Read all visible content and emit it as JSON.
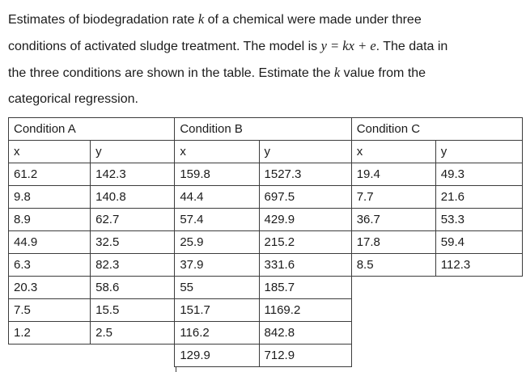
{
  "paragraph": {
    "line1": {
      "t1": "Estimates of biodegradation rate ",
      "m": "k",
      "t2": " of a chemical were made under three"
    },
    "line2": {
      "t1": "conditions of activated sludge treatment. The model is ",
      "m": "y = kx + e",
      "t2": ". The data in"
    },
    "line3": {
      "t1": "the three conditions are shown in the table. Estimate the ",
      "m": "k",
      "t2": " value from the"
    },
    "line4": {
      "t1": "categorical regression."
    }
  },
  "table": {
    "groups": [
      {
        "label": "Condition A",
        "col_headers": [
          "x",
          "y"
        ],
        "rows": [
          [
            "61.2",
            "142.3"
          ],
          [
            "9.8",
            "140.8"
          ],
          [
            "8.9",
            "62.7"
          ],
          [
            "44.9",
            "32.5"
          ],
          [
            "6.3",
            "82.3"
          ],
          [
            "20.3",
            "58.6"
          ],
          [
            "7.5",
            "15.5"
          ],
          [
            "1.2",
            "2.5"
          ]
        ]
      },
      {
        "label": "Condition B",
        "col_headers": [
          "x",
          "y"
        ],
        "rows": [
          [
            "159.8",
            "1527.3"
          ],
          [
            "44.4",
            "697.5"
          ],
          [
            "57.4",
            "429.9"
          ],
          [
            "25.9",
            "215.2"
          ],
          [
            "37.9",
            "331.6"
          ],
          [
            "55",
            "185.7"
          ],
          [
            "151.7",
            "1169.2"
          ],
          [
            "116.2",
            "842.8"
          ],
          [
            "129.9",
            "712.9"
          ]
        ]
      },
      {
        "label": "Condition C",
        "col_headers": [
          "x",
          "y"
        ],
        "rows": [
          [
            "19.4",
            "49.3"
          ],
          [
            "7.7",
            "21.6"
          ],
          [
            "36.7",
            "53.3"
          ],
          [
            "17.8",
            "59.4"
          ],
          [
            "8.5",
            "112.3"
          ]
        ]
      }
    ]
  }
}
